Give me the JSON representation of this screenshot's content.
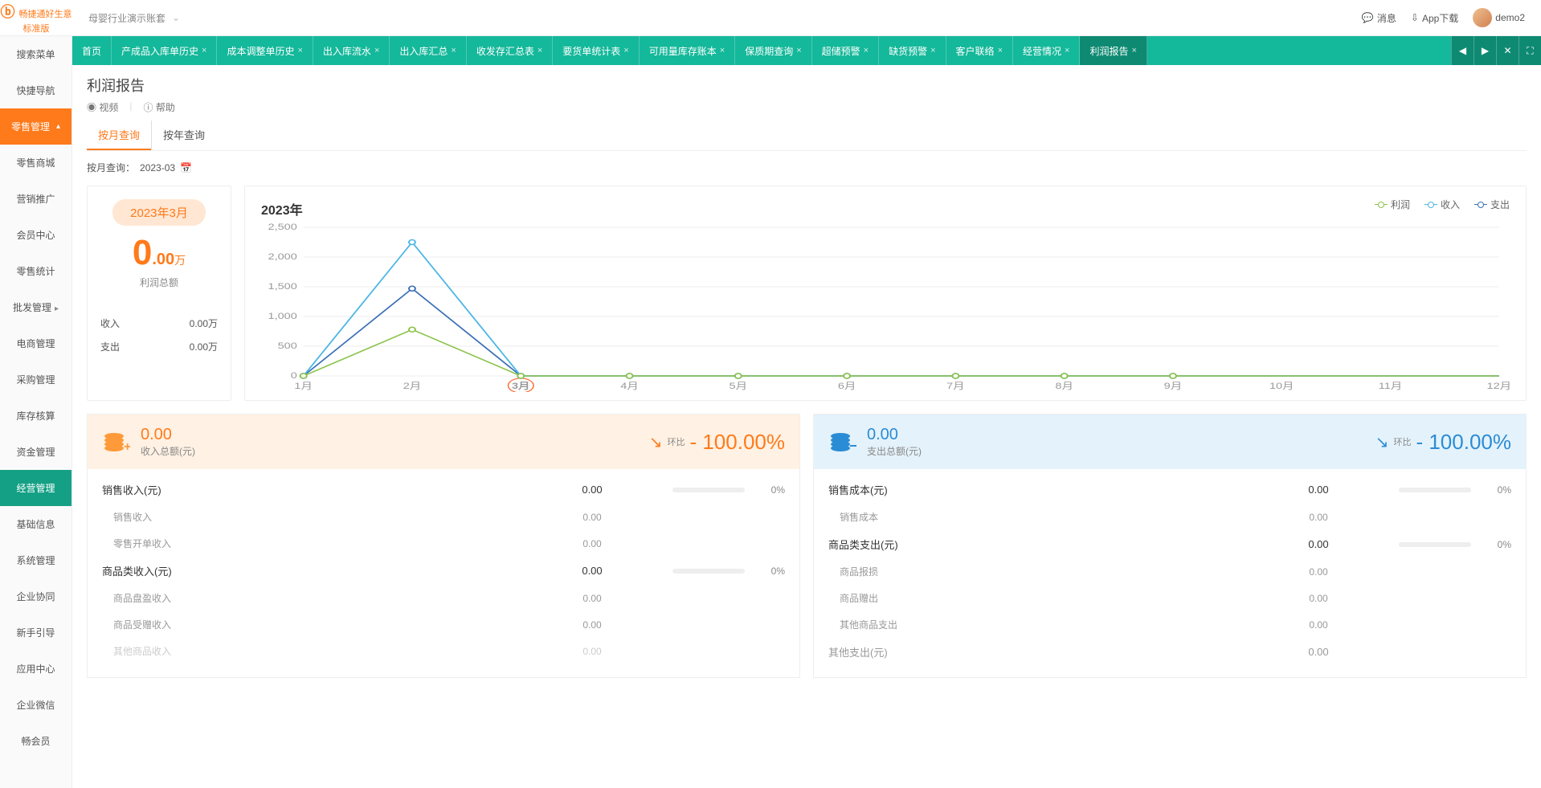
{
  "header": {
    "logo_text": "畅捷通好生意",
    "logo_sub": "标准版",
    "account_name": "母婴行业演示账套",
    "msg_label": "消息",
    "app_label": "App下载",
    "user_name": "demo2"
  },
  "sidebar": {
    "items": [
      {
        "label": "搜索菜单"
      },
      {
        "label": "快捷导航"
      },
      {
        "label": "零售管理",
        "accent": true
      },
      {
        "label": "零售商城"
      },
      {
        "label": "营销推广"
      },
      {
        "label": "会员中心"
      },
      {
        "label": "零售统计"
      },
      {
        "label": "批发管理",
        "arrowed": true
      },
      {
        "label": "电商管理"
      },
      {
        "label": "采购管理"
      },
      {
        "label": "库存核算"
      },
      {
        "label": "资金管理"
      },
      {
        "label": "经营管理",
        "selected": true
      },
      {
        "label": "基础信息"
      },
      {
        "label": "系统管理"
      },
      {
        "label": "企业协同"
      },
      {
        "label": "新手引导"
      },
      {
        "label": "应用中心"
      },
      {
        "label": "企业微信"
      },
      {
        "label": "畅会员"
      }
    ]
  },
  "tabs": [
    {
      "label": "首页",
      "closable": false
    },
    {
      "label": "产成品入库单历史",
      "closable": true
    },
    {
      "label": "成本调整单历史",
      "closable": true
    },
    {
      "label": "出入库流水",
      "closable": true
    },
    {
      "label": "出入库汇总",
      "closable": true
    },
    {
      "label": "收发存汇总表",
      "closable": true
    },
    {
      "label": "要货单统计表",
      "closable": true
    },
    {
      "label": "可用量库存账本",
      "closable": true
    },
    {
      "label": "保质期查询",
      "closable": true
    },
    {
      "label": "超储预警",
      "closable": true
    },
    {
      "label": "缺货预警",
      "closable": true
    },
    {
      "label": "客户联络",
      "closable": true
    },
    {
      "label": "经营情况",
      "closable": true
    },
    {
      "label": "利润报告",
      "closable": true,
      "active": true
    }
  ],
  "page": {
    "title": "利润报告",
    "video_label": "视频",
    "help_label": "帮助",
    "sub_tabs": [
      {
        "label": "按月查询",
        "active": true
      },
      {
        "label": "按年查询"
      }
    ],
    "filter_label": "按月查询：",
    "filter_value": "2023-03"
  },
  "summary": {
    "month_label": "2023年3月",
    "big_int": "0",
    "big_dec": ".00",
    "big_unit": "万",
    "profit_label": "利润总额",
    "income_label": "收入",
    "income_value": "0.00万",
    "expense_label": "支出",
    "expense_value": "0.00万"
  },
  "chart": {
    "title": "2023年",
    "legend": [
      {
        "label": "利润",
        "color": "#8bc34a"
      },
      {
        "label": "收入",
        "color": "#4db6e4"
      },
      {
        "label": "支出",
        "color": "#3a6fb7"
      }
    ],
    "y_ticks": [
      0,
      500,
      1000,
      1500,
      2000,
      2500
    ],
    "y_max": 2500,
    "x_labels": [
      "1月",
      "2月",
      "3月",
      "4月",
      "5月",
      "6月",
      "7月",
      "8月",
      "9月",
      "10月",
      "11月",
      "12月"
    ],
    "highlight_index": 2,
    "series": {
      "profit": [
        0,
        780,
        0,
        0,
        0,
        0,
        0,
        0,
        0,
        0,
        0,
        0
      ],
      "income": [
        0,
        2250,
        0,
        0,
        0,
        0,
        0,
        0,
        0,
        0,
        0,
        0
      ],
      "expense": [
        0,
        1470,
        0,
        0,
        0,
        0,
        0,
        0,
        0,
        0,
        0,
        0
      ]
    },
    "colors": {
      "profit": "#8bc34a",
      "income": "#4db6e4",
      "expense": "#3a6fb7"
    },
    "grid_color": "#eeeeee",
    "marker_visible_max_index": 8
  },
  "income_panel": {
    "accent": "#ff7a1a",
    "bg": "#fff1e3",
    "total_value": "0.00",
    "total_label": "收入总额(元)",
    "huanbi_label": "环比",
    "delta": "- 100.00%",
    "rows": [
      {
        "label": "销售收入(元)",
        "value": "0.00",
        "pct": "0%",
        "bold": true,
        "bar": true
      },
      {
        "label": "销售收入",
        "value": "0.00",
        "sub": true
      },
      {
        "label": "零售开单收入",
        "value": "0.00",
        "sub": true
      },
      {
        "label": "商品类收入(元)",
        "value": "0.00",
        "pct": "0%",
        "bold": true,
        "bar": true
      },
      {
        "label": "商品盘盈收入",
        "value": "0.00",
        "sub": true
      },
      {
        "label": "商品受赠收入",
        "value": "0.00",
        "sub": true
      },
      {
        "label": "其他商品收入",
        "value": "0.00",
        "sub": true,
        "faded": true
      }
    ]
  },
  "expense_panel": {
    "accent": "#2b8cd6",
    "bg": "#e4f2fb",
    "total_value": "0.00",
    "total_label": "支出总额(元)",
    "huanbi_label": "环比",
    "delta": "- 100.00%",
    "rows": [
      {
        "label": "销售成本(元)",
        "value": "0.00",
        "pct": "0%",
        "bold": true,
        "bar": true
      },
      {
        "label": "销售成本",
        "value": "0.00",
        "sub": true
      },
      {
        "label": "商品类支出(元)",
        "value": "0.00",
        "pct": "0%",
        "bold": true,
        "bar": true
      },
      {
        "label": "商品报损",
        "value": "0.00",
        "sub": true
      },
      {
        "label": "商品赠出",
        "value": "0.00",
        "sub": true
      },
      {
        "label": "其他商品支出",
        "value": "0.00",
        "sub": true
      },
      {
        "label": "其他支出(元)",
        "value": "0.00",
        "bold": true,
        "faded": true
      }
    ]
  }
}
